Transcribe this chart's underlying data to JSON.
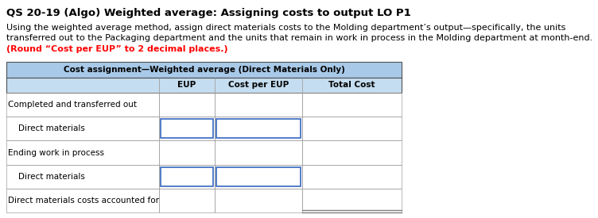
{
  "title": "QS 20-19 (Algo) Weighted average: Assigning costs to output LO P1",
  "body_line1": "Using the weighted average method, assign direct materials costs to the Molding department’s output—specifically, the units",
  "body_line2": "transferred out to the Packaging department and the units that remain in work in process in the Molding department at month-end.",
  "red_text": "(Round “Cost per EUP” to 2 decimal places.)",
  "table_header": "Cost assignment—Weighted average (Direct Materials Only)",
  "col_headers": [
    "EUP",
    "Cost per EUP",
    "Total Cost"
  ],
  "rows": [
    {
      "label": "Completed and transferred out",
      "indent": false,
      "input_eup": false,
      "input_cpu": false
    },
    {
      "label": "Direct materials",
      "indent": true,
      "input_eup": true,
      "input_cpu": true
    },
    {
      "label": "Ending work in process",
      "indent": false,
      "input_eup": false,
      "input_cpu": false
    },
    {
      "label": "Direct materials",
      "indent": true,
      "input_eup": true,
      "input_cpu": true
    },
    {
      "label": "Direct materials costs accounted for",
      "indent": false,
      "input_eup": false,
      "input_cpu": false
    }
  ],
  "header_bg": "#a8c9e8",
  "subheader_bg": "#c5ddf0",
  "input_box_color": "#4472c4",
  "grid_color": "#a0a0a0",
  "double_line_color": "#808080",
  "background": "#ffffff",
  "title_fontsize": 9.5,
  "body_fontsize": 8.0,
  "table_fontsize": 7.5
}
